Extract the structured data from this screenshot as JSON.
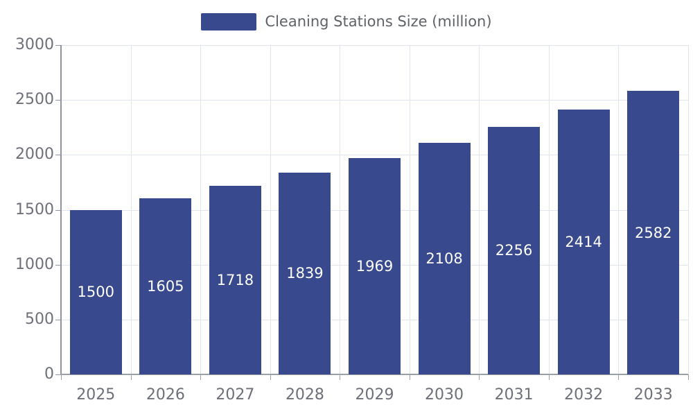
{
  "legend": {
    "label": "Cleaning Stations Size (million)"
  },
  "chart_data": {
    "type": "bar",
    "title": "Cleaning Stations Size (million)",
    "categories": [
      "2025",
      "2026",
      "2027",
      "2028",
      "2029",
      "2030",
      "2031",
      "2032",
      "2033"
    ],
    "series": [
      {
        "name": "Cleaning Stations Size (million)",
        "values": [
          1500,
          1605,
          1718,
          1839,
          1969,
          2108,
          2256,
          2414,
          2582
        ]
      }
    ],
    "values": [
      1500,
      1605,
      1718,
      1839,
      1969,
      2108,
      2256,
      2414,
      2582
    ],
    "bar_labels": [
      "1500",
      "1605",
      "1718",
      "1839",
      "1969",
      "2108",
      "2256",
      "2414",
      "2582"
    ],
    "xlabel": "",
    "ylabel": "",
    "ylim": [
      0,
      3000
    ],
    "yticks": [
      0,
      500,
      1000,
      1500,
      2000,
      2500,
      3000
    ],
    "grid": true,
    "legend_position": "top-center",
    "colors": {
      "bar": "#384a8d",
      "bar_value_label": "#ffffff",
      "axis_tick_label": "#6e7079",
      "legend_text": "#5f6368",
      "gridline": "#e0e4ec",
      "axis_line": "#9aa0a6",
      "background": "#ffffff"
    }
  }
}
